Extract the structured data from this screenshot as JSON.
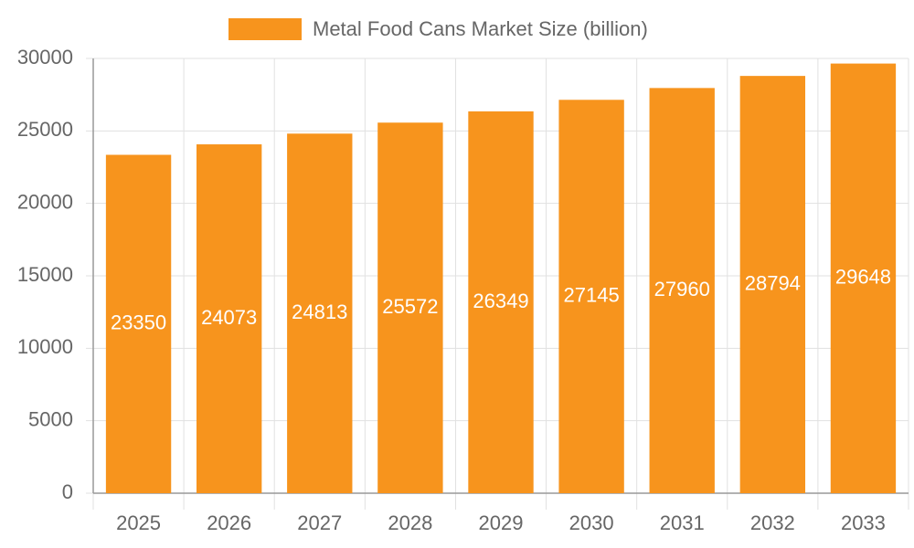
{
  "chart_data": {
    "type": "bar",
    "legend": "Metal Food Cans Market Size (billion)",
    "categories": [
      "2025",
      "2026",
      "2027",
      "2028",
      "2029",
      "2030",
      "2031",
      "2032",
      "2033"
    ],
    "values": [
      23350,
      24073,
      24813,
      25572,
      26349,
      27145,
      27960,
      28794,
      29648
    ],
    "color": "#f7941d",
    "ylim": [
      0,
      30000
    ],
    "yticks": [
      0,
      5000,
      10000,
      15000,
      20000,
      25000,
      30000
    ],
    "grid": true
  }
}
